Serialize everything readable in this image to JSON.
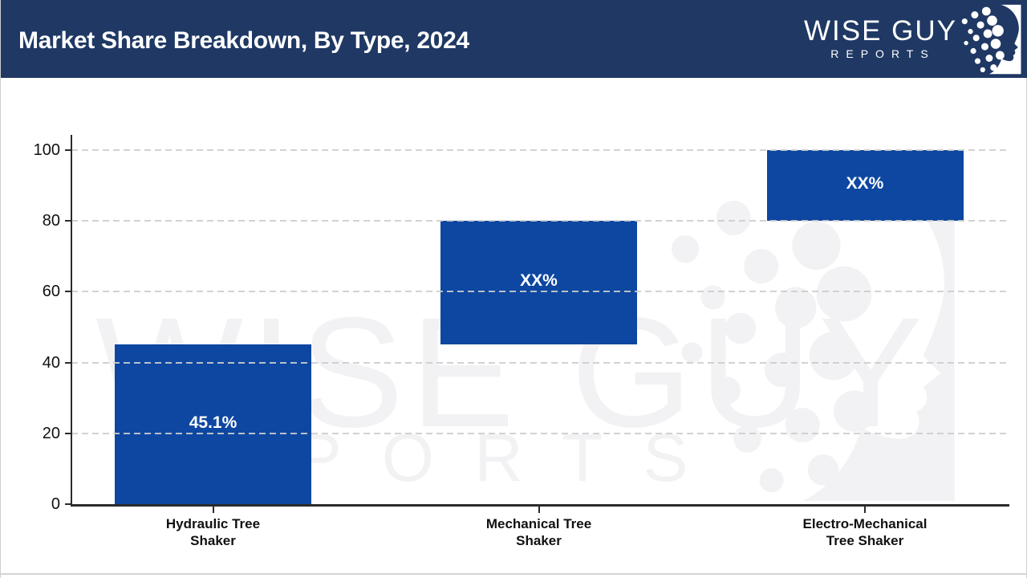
{
  "header": {
    "title": "Market Share Breakdown, By Type, 2024",
    "brand": {
      "line1": "WISE GUY",
      "line2": "REPORTS"
    }
  },
  "watermark": {
    "line1": "WISE GUY",
    "line2": "REPORTS"
  },
  "colors": {
    "header_bg": "#1f3864",
    "bar": "#0d47a1",
    "grid": "#d9d9d9",
    "axis": "#2b2b2b",
    "title_text": "#ffffff",
    "bar_label_text": "#ffffff",
    "watermark": "#f2f2f4"
  },
  "chart_data": {
    "type": "bar",
    "subtype": "waterfall",
    "title": "Market Share Breakdown, By Type, 2024",
    "categories": [
      "Hydraulic Tree Shaker",
      "Mechanical Tree Shaker",
      "Electro-Mechanical Tree Shaker"
    ],
    "category_lines": [
      [
        "Hydraulic Tree",
        "Shaker"
      ],
      [
        "Mechanical Tree",
        "Shaker"
      ],
      [
        "Electro-Mechanical",
        "Tree Shaker"
      ]
    ],
    "segments": [
      {
        "category": "Hydraulic Tree Shaker",
        "start": 0,
        "end": 45.1,
        "value_label": "45.1%"
      },
      {
        "category": "Mechanical Tree Shaker",
        "start": 45.1,
        "end": 80,
        "value_label": "XX%"
      },
      {
        "category": "Electro-Mechanical Tree Shaker",
        "start": 80,
        "end": 100,
        "value_label": "XX%"
      }
    ],
    "yticks": [
      0,
      20,
      40,
      60,
      80,
      100
    ],
    "ylim": [
      0,
      105
    ],
    "xlabel": "",
    "ylabel": "",
    "grid": "horizontal-dashed",
    "legend": false
  }
}
